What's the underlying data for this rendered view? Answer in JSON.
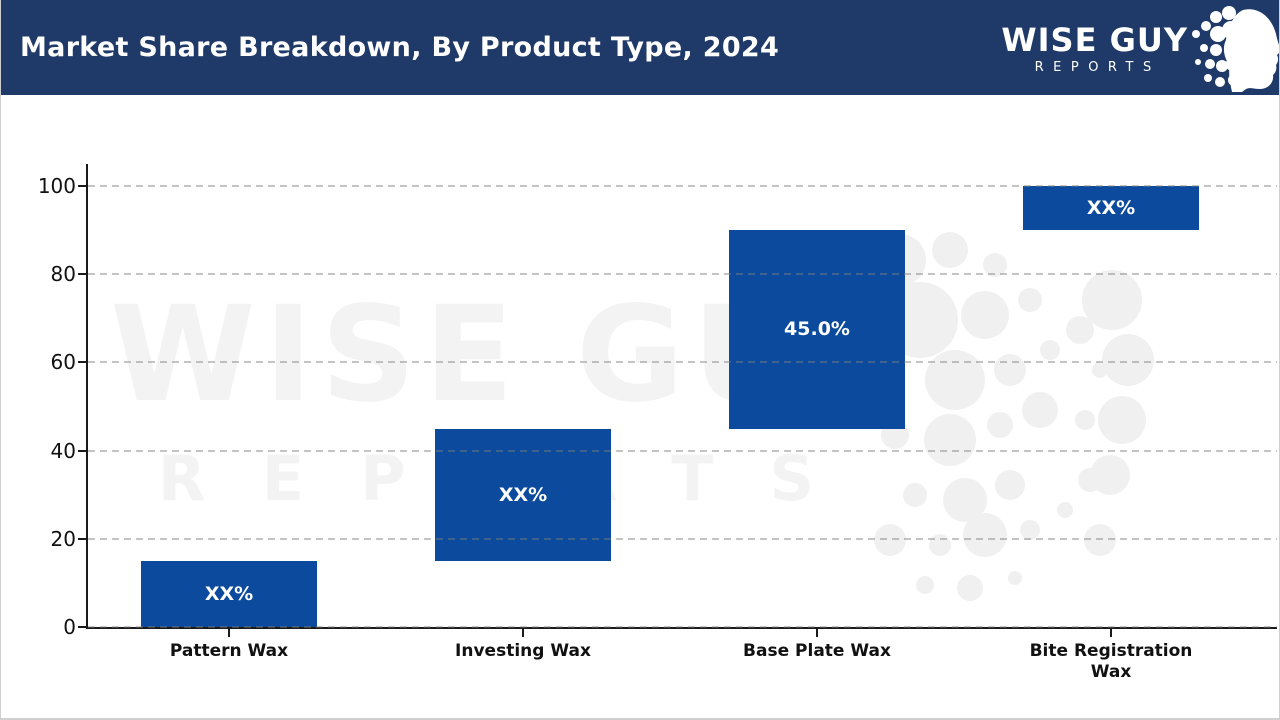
{
  "header": {
    "title": "Market Share Breakdown, By Product Type, 2024",
    "logo": {
      "name": "WISE GUY",
      "sub": "REPORTS"
    }
  },
  "watermark": {
    "big": "WISE GU",
    "small": "REPORTS"
  },
  "chart_data": {
    "type": "bar",
    "variant": "floating-waterfall",
    "title": "Market Share Breakdown, By Product Type, 2024",
    "categories": [
      "Pattern Wax",
      "Investing Wax",
      "Base Plate Wax",
      "Bite Registration Wax"
    ],
    "segments": [
      {
        "category": "Pattern Wax",
        "from": 0,
        "to": 15,
        "label": "XX%"
      },
      {
        "category": "Investing Wax",
        "from": 15,
        "to": 45,
        "label": "XX%"
      },
      {
        "category": "Base Plate Wax",
        "from": 45,
        "to": 90,
        "label": "45.0%"
      },
      {
        "category": "Bite Registration Wax",
        "from": 90,
        "to": 100,
        "label": "XX%"
      }
    ],
    "yticks": [
      0,
      20,
      40,
      60,
      80,
      100
    ],
    "ylim": [
      0,
      105
    ],
    "xlabel": "",
    "ylabel": "",
    "grid": "horizontal-dashed",
    "legend": "none",
    "bar_color": "#0b4a9c"
  },
  "colors": {
    "header_bg": "#1f3a68",
    "bar": "#0b4a9c",
    "grid_dash": "#c9c9c9",
    "axis": "#1a1a1a",
    "watermark": "#f2f2f2",
    "title_text": "#ffffff"
  }
}
